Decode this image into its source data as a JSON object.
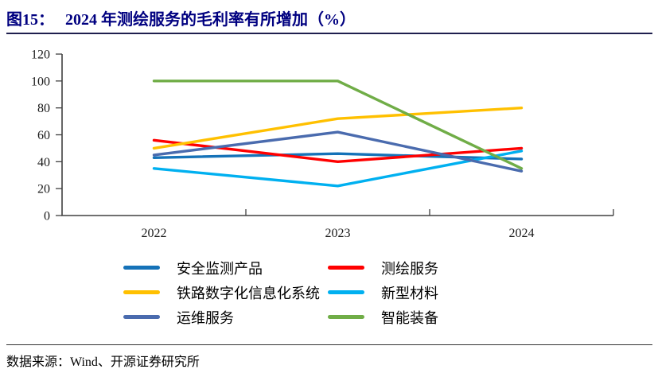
{
  "header": {
    "figure_label": "图15：",
    "title": "2024 年测绘服务的毛利率有所增加（%）"
  },
  "footer": {
    "source": "数据来源：Wind、开源证券研究所"
  },
  "colors": {
    "title": "#000080",
    "axis": "#404040",
    "title_underline": "#1F1F4E"
  },
  "chart_data": {
    "type": "line",
    "categories": [
      "2022",
      "2023",
      "2024"
    ],
    "series": [
      {
        "name": "安全监测产品",
        "color": "#1572B8",
        "values": [
          43,
          46,
          42
        ]
      },
      {
        "name": "测绘服务",
        "color": "#FF0000",
        "values": [
          56,
          40,
          50
        ]
      },
      {
        "name": "铁路数字化信息化系统",
        "color": "#FFC000",
        "values": [
          50,
          72,
          80
        ]
      },
      {
        "name": "新型材料",
        "color": "#00B0F0",
        "values": [
          35,
          22,
          48
        ]
      },
      {
        "name": "运维服务",
        "color": "#4A6BAE",
        "values": [
          45,
          62,
          33
        ]
      },
      {
        "name": "智能装备",
        "color": "#70AD47",
        "values": [
          100,
          100,
          35
        ]
      }
    ],
    "ylim": [
      0,
      120
    ],
    "yticks": [
      0,
      20,
      40,
      60,
      80,
      100,
      120
    ],
    "grid": false,
    "legend_position": "bottom",
    "legend_columns": 2
  }
}
